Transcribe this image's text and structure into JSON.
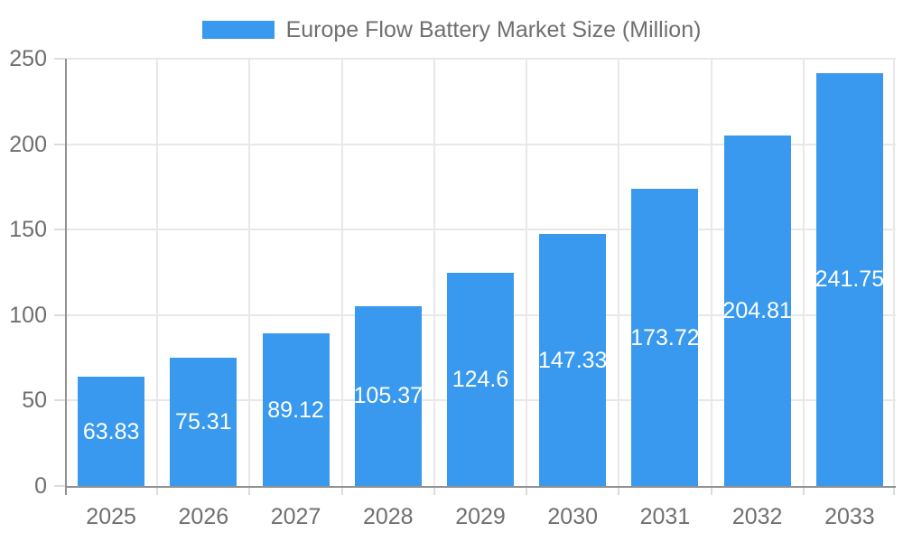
{
  "chart_data": {
    "type": "bar",
    "title": "Europe Flow Battery Market Size (Million)",
    "legend": [
      "Europe Flow Battery Market Size (Million)"
    ],
    "legend_position": "top",
    "categories": [
      "2025",
      "2026",
      "2027",
      "2028",
      "2029",
      "2030",
      "2031",
      "2032",
      "2033"
    ],
    "values": [
      63.83,
      75.31,
      89.12,
      105.37,
      124.6,
      147.33,
      173.72,
      204.81,
      241.75
    ],
    "data_labels": [
      "63.83",
      "75.31",
      "89.12",
      "105.37",
      "124.6",
      "147.33",
      "173.72",
      "204.81",
      "241.75"
    ],
    "xlabel": "",
    "ylabel": "",
    "ylim": [
      0,
      250
    ],
    "yticks": [
      0,
      50,
      100,
      150,
      200,
      250
    ],
    "grid": true,
    "colors": {
      "bar": "#3999EE",
      "value_label": "#ffffff",
      "axis_text": "#6f6f6f",
      "grid_line": "#e8e8e8",
      "axis_line": "#919191",
      "background": "#ffffff"
    }
  }
}
